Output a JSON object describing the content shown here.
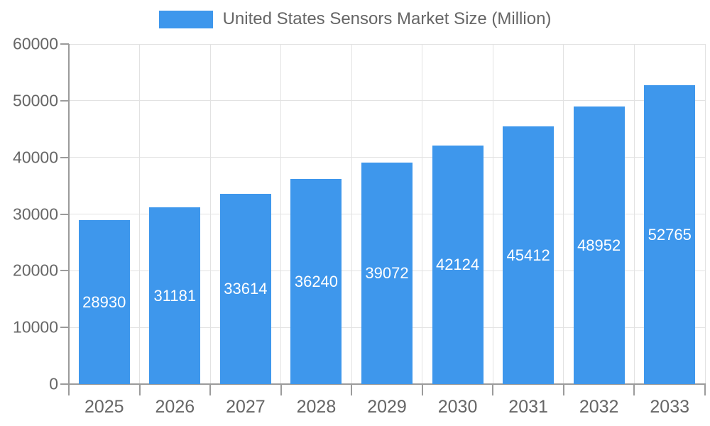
{
  "chart_data": {
    "type": "bar",
    "title": "",
    "categories": [
      "2025",
      "2026",
      "2027",
      "2028",
      "2029",
      "2030",
      "2031",
      "2032",
      "2033"
    ],
    "series": [
      {
        "name": "United States Sensors Market Size (Million)",
        "values": [
          28930,
          31181,
          33614,
          36240,
          39072,
          42124,
          45412,
          48952,
          52765
        ]
      }
    ],
    "xlabel": "",
    "ylabel": "",
    "ylim": [
      0,
      60000
    ],
    "yticks": [
      0,
      10000,
      20000,
      30000,
      40000,
      50000,
      60000
    ],
    "grid": true,
    "legend_position": "top-center",
    "bar_label_position": "inside-center",
    "colors": {
      "bar": "#3e97ec",
      "bar_label": "#ffffff",
      "axis_line": "#9b9b9b",
      "grid_line": "#e2e2e2",
      "tick_text": "#666666",
      "legend_text": "#666666",
      "background": "#ffffff"
    }
  }
}
